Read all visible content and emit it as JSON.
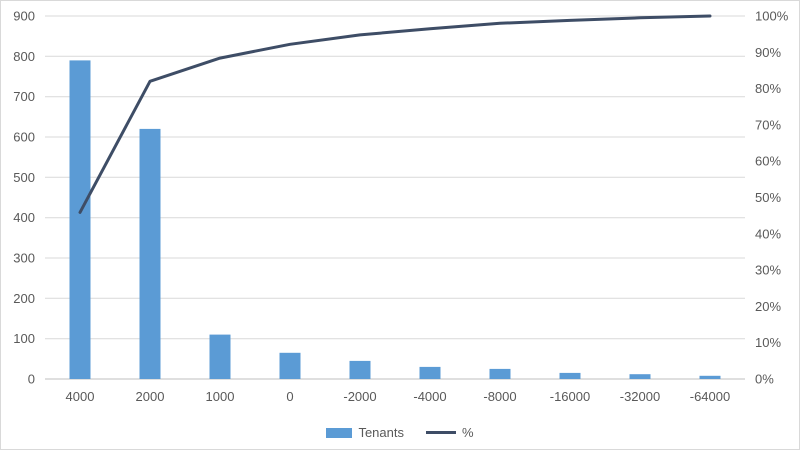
{
  "chart_data": {
    "type": "bar",
    "subtype": "pareto-combo-bar-line",
    "title": "",
    "categories": [
      "4000",
      "2000",
      "1000",
      "0",
      "-2000",
      "-4000",
      "-8000",
      "-16000",
      "-32000",
      "-64000"
    ],
    "series": [
      {
        "name": "Tenants",
        "type": "bar",
        "axis": "left",
        "color": "#5B9BD5",
        "values": [
          790,
          620,
          110,
          65,
          45,
          30,
          25,
          15,
          12,
          8
        ]
      },
      {
        "name": "%",
        "type": "line",
        "axis": "right",
        "color": "#3E4D66",
        "values": [
          45.9,
          82.0,
          88.4,
          92.2,
          94.8,
          96.5,
          98.0,
          98.8,
          99.5,
          100.0
        ]
      }
    ],
    "left_axis": {
      "min": 0,
      "max": 900,
      "step": 100,
      "tick_labels": [
        "0",
        "100",
        "200",
        "300",
        "400",
        "500",
        "600",
        "700",
        "800",
        "900"
      ]
    },
    "right_axis": {
      "min": 0,
      "max": 100,
      "step": 10,
      "tick_labels": [
        "0%",
        "10%",
        "20%",
        "30%",
        "40%",
        "50%",
        "60%",
        "70%",
        "80%",
        "90%",
        "100%"
      ]
    },
    "grid": true,
    "legend_position": "bottom",
    "legend_labels": [
      "Tenants",
      "%"
    ]
  },
  "colors": {
    "bar": "#5B9BD5",
    "line": "#3E4D66",
    "gridline": "#D9D9D9",
    "axis_line": "#BFBFBF",
    "text": "#595959",
    "frame_border": "#D9D9D9",
    "background": "#FFFFFF"
  }
}
